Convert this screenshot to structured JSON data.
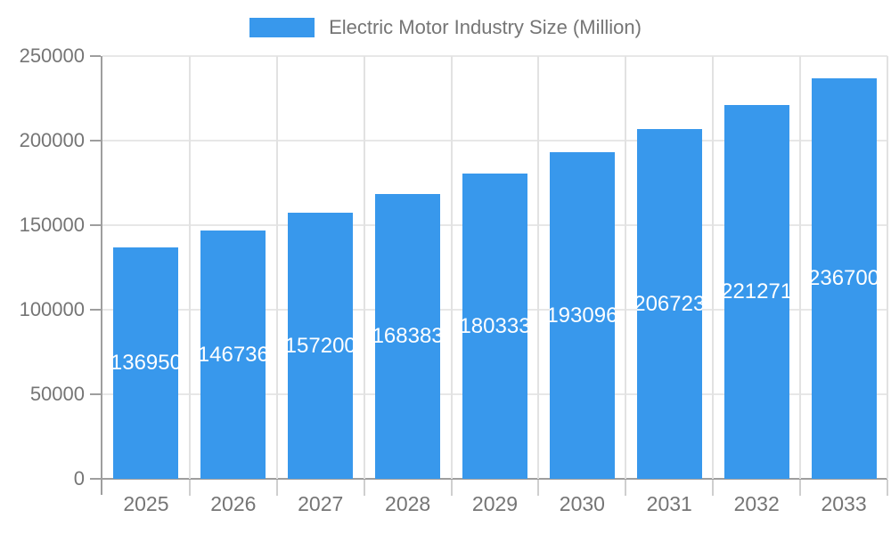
{
  "legend": {
    "label": "Electric Motor Industry Size (Million)"
  },
  "chart_data": {
    "type": "bar",
    "title": "Electric Motor Industry Size (Million)",
    "series_name": "Electric Motor Industry Size (Million)",
    "categories": [
      "2025",
      "2026",
      "2027",
      "2028",
      "2029",
      "2030",
      "2031",
      "2032",
      "2033"
    ],
    "values": [
      136950,
      146736,
      157200,
      168383,
      180333,
      193096,
      206723,
      221271,
      236700
    ],
    "xlabel": "",
    "ylabel": "",
    "ylim": [
      0,
      250000
    ],
    "y_ticks": [
      0,
      50000,
      100000,
      150000,
      200000,
      250000
    ],
    "grid": true,
    "legend_position": "top",
    "bar_color": "#3898ec",
    "bar_label_color": "#ffffff",
    "axis_label_color": "#757575",
    "grid_color": "#e2e2e2",
    "axis_color": "#9e9e9e"
  }
}
